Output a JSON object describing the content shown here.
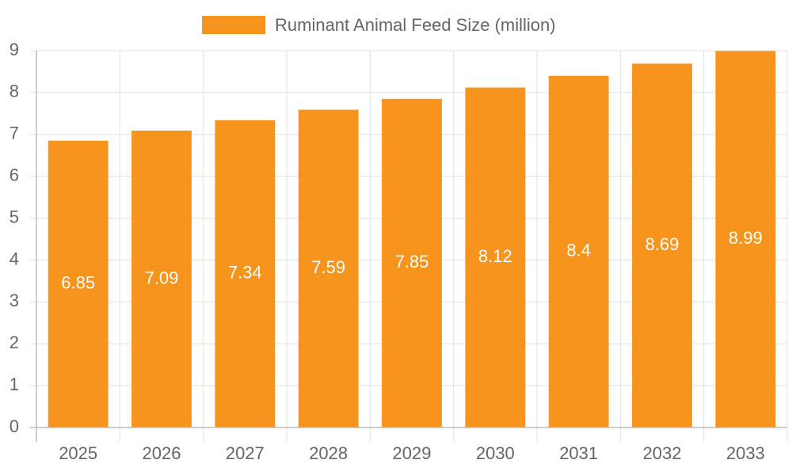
{
  "chart_data": {
    "type": "bar",
    "categories": [
      "2025",
      "2026",
      "2027",
      "2028",
      "2029",
      "2030",
      "2031",
      "2032",
      "2033"
    ],
    "series": [
      {
        "name": "Ruminant Animal Feed Size (million)",
        "color": "#f7941d",
        "values": [
          6.85,
          7.09,
          7.34,
          7.59,
          7.85,
          8.12,
          8.4,
          8.69,
          8.99
        ]
      }
    ],
    "ylim": [
      0,
      9
    ],
    "yticks": [
      0,
      1,
      2,
      3,
      4,
      5,
      6,
      7,
      8,
      9
    ],
    "grid": true,
    "legend": "top"
  }
}
